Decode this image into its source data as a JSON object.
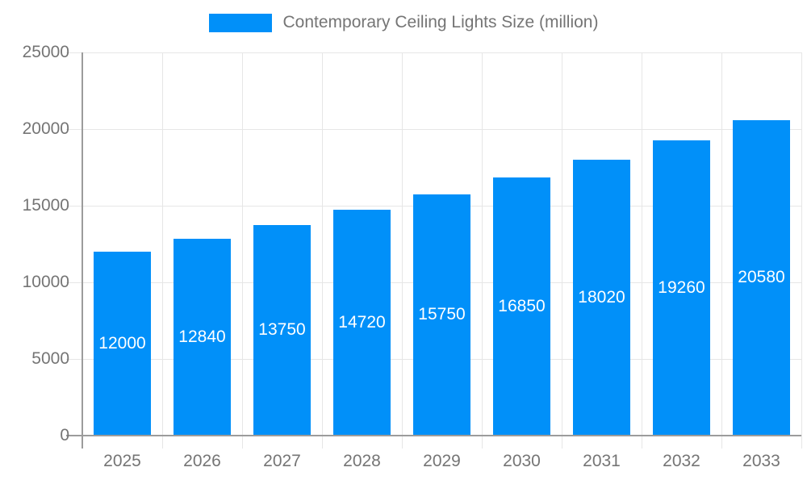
{
  "legend": {
    "label": "Contemporary Ceiling Lights Size (million)"
  },
  "chart_data": {
    "type": "bar",
    "title": "Contemporary Ceiling Lights Size (million)",
    "categories": [
      "2025",
      "2026",
      "2027",
      "2028",
      "2029",
      "2030",
      "2031",
      "2032",
      "2033"
    ],
    "values": [
      12000,
      12840,
      13750,
      14720,
      15750,
      16850,
      18020,
      19260,
      20580
    ],
    "bar_labels": [
      "12000",
      "12840",
      "13750",
      "14720",
      "15750",
      "16850",
      "18020",
      "19260",
      "20580"
    ],
    "xlabel": "",
    "ylabel": "",
    "ylim": [
      0,
      25000
    ],
    "y_ticks": [
      0,
      5000,
      10000,
      15000,
      20000,
      25000
    ],
    "grid": true,
    "legend_position": "top-center",
    "colors": {
      "bar": "#0190f9",
      "grid": "#e6e6e6",
      "axis": "#9c9c9c",
      "tick_text": "#757575",
      "bar_label_text": "#ffffff",
      "legend_text": "#757575",
      "background": "#ffffff"
    }
  }
}
